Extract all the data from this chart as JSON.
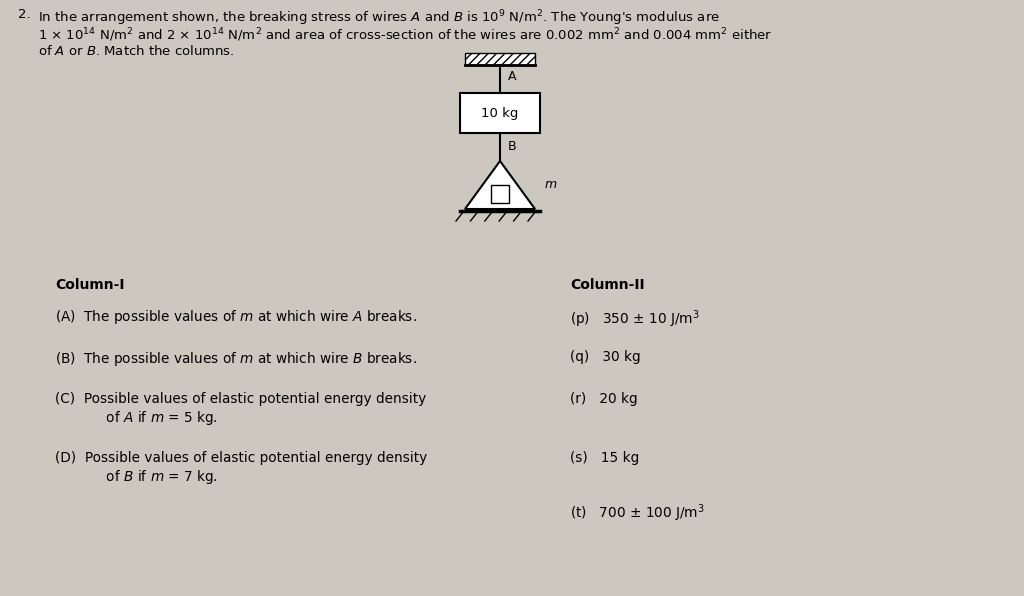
{
  "background_color": "#ccc8c0",
  "font_size_question": 9.5,
  "font_size_header": 10,
  "font_size_body": 9.8,
  "font_size_diagram": 9,
  "col1_header": "Column-I",
  "col2_header": "Column-II",
  "line1": "In the arrangement shown, the breaking stress of wires $A$ and $B$ is 10$^9$ N/m$^2$. The Young's modulus are",
  "line2": "1 $\\times$ 10$^{14}$ N/m$^2$ and 2 $\\times$ 10$^{14}$ N/m$^2$ and area of cross-section of the wires are 0.002 mm$^2$ and 0.004 mm$^2$ either",
  "line3": "of $A$ or $B$. Match the columns.",
  "col1_A": "(A)  The possible values of $m$ at which wire $A$ breaks.",
  "col1_B": "(B)  The possible values of $m$ at which wire $B$ breaks.",
  "col1_C1": "(C)  Possible values of elastic potential energy density",
  "col1_C2": "      of $A$ if $m$ = 5 kg.",
  "col1_D1": "(D)  Possible values of elastic potential energy density",
  "col1_D2": "      of $B$ if $m$ = 7 kg.",
  "col2_p": "(p)   350 $\\pm$ 10 J/m$^3$",
  "col2_q": "(q)   30 kg",
  "col2_r": "(r)   20 kg",
  "col2_s": "(s)   15 kg",
  "col2_t": "(t)   700 $\\pm$ 100 J/m$^3$"
}
